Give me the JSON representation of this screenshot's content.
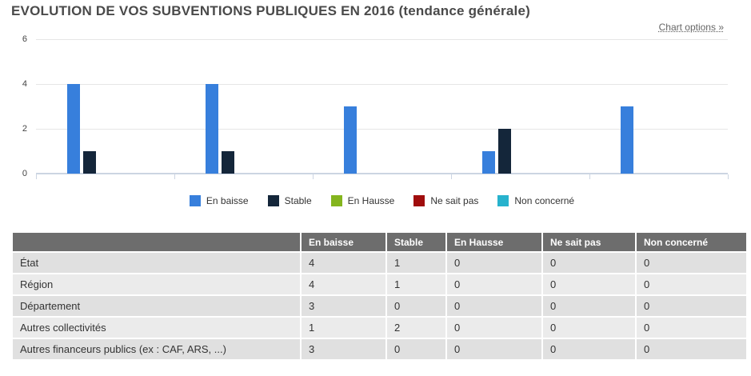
{
  "header": {
    "title": "EVOLUTION DE VOS SUBVENTIONS PUBLIQUES EN 2016 (tendance générale)",
    "chart_options_label": "Chart options »"
  },
  "chart_data": {
    "type": "bar",
    "title": "EVOLUTION DE VOS SUBVENTIONS PUBLIQUES EN 2016 (tendance générale)",
    "xlabel": "",
    "ylabel": "",
    "categories": [
      "État",
      "Région",
      "Département",
      "Autres collectivités",
      "Autres financeurs publics (ex : CAF, ARS, ...)"
    ],
    "series": [
      {
        "name": "En baisse",
        "color": "#377fdc",
        "values": [
          4,
          4,
          3,
          1,
          3
        ]
      },
      {
        "name": "Stable",
        "color": "#14263a",
        "values": [
          1,
          1,
          0,
          2,
          0
        ]
      },
      {
        "name": "En Hausse",
        "color": "#84b51e",
        "values": [
          0,
          0,
          0,
          0,
          0
        ]
      },
      {
        "name": "Ne sait pas",
        "color": "#a00d0d",
        "values": [
          0,
          0,
          0,
          0,
          0
        ]
      },
      {
        "name": "Non concerné",
        "color": "#27b2cd",
        "values": [
          0,
          0,
          0,
          0,
          0
        ]
      }
    ],
    "ylim": [
      0,
      6
    ],
    "yticks": [
      0,
      2,
      4,
      6
    ],
    "grid": true,
    "legend_position": "bottom",
    "x_tick_labels_shown": false
  },
  "table": {
    "columns": [
      "",
      "En baisse",
      "Stable",
      "En Hausse",
      "Ne sait pas",
      "Non concerné"
    ],
    "rows": [
      {
        "label": "État",
        "values": [
          4,
          1,
          0,
          0,
          0
        ]
      },
      {
        "label": "Région",
        "values": [
          4,
          1,
          0,
          0,
          0
        ]
      },
      {
        "label": "Département",
        "values": [
          3,
          0,
          0,
          0,
          0
        ]
      },
      {
        "label": "Autres collectivités",
        "values": [
          1,
          2,
          0,
          0,
          0
        ]
      },
      {
        "label": "Autres financeurs publics (ex : CAF, ARS, ...)",
        "values": [
          3,
          0,
          0,
          0,
          0
        ]
      }
    ]
  },
  "colors": {
    "title_text": "#4a4a4a",
    "link_text": "#666666",
    "gridline": "#e6e6e6",
    "axis": "#ccd5e2",
    "table_header_bg": "#6d6d6d",
    "row_dark_bg": "#e0e0e0",
    "row_light_bg": "#ebebeb"
  }
}
